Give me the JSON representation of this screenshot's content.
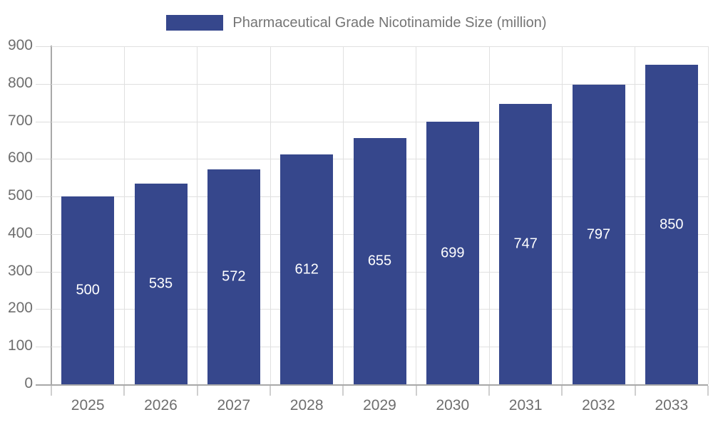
{
  "chart_data": {
    "type": "bar",
    "title": "Pharmaceutical Grade Nicotinamide Size (million)",
    "categories": [
      "2025",
      "2026",
      "2027",
      "2028",
      "2029",
      "2030",
      "2031",
      "2032",
      "2033"
    ],
    "values": [
      500,
      535,
      572,
      612,
      655,
      699,
      747,
      797,
      850
    ],
    "xlabel": "",
    "ylabel": "",
    "ylim": [
      0,
      900
    ],
    "ytick_step": 100,
    "ytick_labels": [
      "0",
      "100",
      "200",
      "300",
      "400",
      "500",
      "600",
      "700",
      "800",
      "900"
    ],
    "grid": true,
    "legend_position": "top",
    "colors": {
      "bar": "#36478C",
      "bar_value_text": "#ffffff",
      "axis_line": "#a8a8a8",
      "gridline": "#e0e0e0",
      "tick_text": "#6e6e6e",
      "legend_text": "#757575",
      "background": "#ffffff"
    }
  },
  "legend": {
    "items": [
      {
        "label": "Pharmaceutical Grade Nicotinamide Size (million)",
        "swatch_color": "#36478C"
      }
    ]
  }
}
